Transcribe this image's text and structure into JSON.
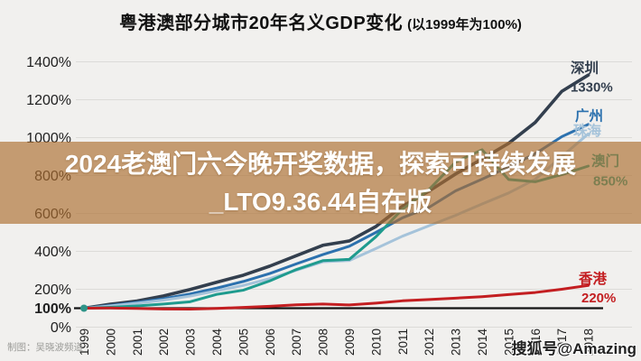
{
  "title": {
    "main": "粤港澳部分城市20年名义GDP变化",
    "subtitle": "(以1999年为100%)"
  },
  "overlay": {
    "line1": "2024老澳门六今晚开奖数据，探索可持续发展",
    "line2": "_LTO9.36.44自在版",
    "bg_color": "#ad6f30",
    "text_color": "#ffffff"
  },
  "credit": "制图：吴晓波频道",
  "watermark": "搜狐号@Amazing",
  "chart_data": {
    "type": "line",
    "title": "粤港澳部分城市20年名义GDP变化 (以1999年为100%)",
    "x": [
      1999,
      2000,
      2001,
      2002,
      2003,
      2004,
      2005,
      2006,
      2007,
      2008,
      2009,
      2010,
      2011,
      2012,
      2013,
      2014,
      2015,
      2016,
      2017,
      2018
    ],
    "ylim": [
      0,
      1400
    ],
    "ytick_values": [
      0,
      100,
      200,
      400,
      600,
      800,
      1000,
      1200,
      1400
    ],
    "ytick_suffix": "%",
    "baseline_value": 100,
    "grid": true,
    "legend_position": "right-edge-labels",
    "colors": {
      "background": "#f1f0ee",
      "gridline": "#dcdbd8",
      "baseline": "#141414",
      "axis_text": "#1f1f1f",
      "start_dot": "#2f9488"
    },
    "series": [
      {
        "name": "深圳",
        "color": "#333f4e",
        "width": 3.6,
        "end_value_label": "1330%",
        "label_dx": 2,
        "label_dy": -8,
        "value_dx": 2,
        "value_dy": 13,
        "values": [
          100,
          121,
          138,
          165,
          199,
          237,
          274,
          322,
          377,
          432,
          455,
          531,
          638,
          718,
          808,
          887,
          970,
          1080,
          1244,
          1330
        ]
      },
      {
        "name": "广州",
        "color": "#2c71ae",
        "width": 3,
        "end_value_label": "",
        "label_dx": 7,
        "label_dy": -10,
        "value_dx": 7,
        "value_dy": 0,
        "values": [
          100,
          115,
          131,
          150,
          175,
          206,
          241,
          283,
          334,
          383,
          427,
          500,
          577,
          632,
          719,
          781,
          846,
          915,
          1005,
          1070
        ]
      },
      {
        "name": "珠海",
        "color": "#a5c3da",
        "width": 3,
        "end_value_label": "",
        "label_dx": 5,
        "label_dy": -4,
        "value_dx": 5,
        "value_dy": 0,
        "values": [
          100,
          112,
          126,
          143,
          164,
          192,
          220,
          256,
          300,
          345,
          352,
          415,
          480,
          535,
          590,
          650,
          708,
          780,
          900,
          1020
        ]
      },
      {
        "name": "澳门",
        "color": "#1f9b8e",
        "width": 3,
        "end_value_label": "850%",
        "label_dx": 25,
        "label_dy": -6,
        "value_dx": 27,
        "value_dy": 16,
        "values": [
          100,
          105,
          112,
          122,
          134,
          173,
          195,
          244,
          304,
          351,
          358,
          477,
          623,
          726,
          871,
          936,
          779,
          767,
          805,
          850
        ]
      },
      {
        "name": "香港",
        "color": "#c31e21",
        "width": 3,
        "end_value_label": "220%",
        "label_dx": 11,
        "label_dy": -8,
        "value_dx": 14,
        "value_dy": 13,
        "values": [
          100,
          101,
          99,
          96,
          95,
          99,
          104,
          110,
          118,
          122,
          117,
          127,
          139,
          146,
          153,
          161,
          172,
          183,
          200,
          220
        ]
      }
    ]
  }
}
